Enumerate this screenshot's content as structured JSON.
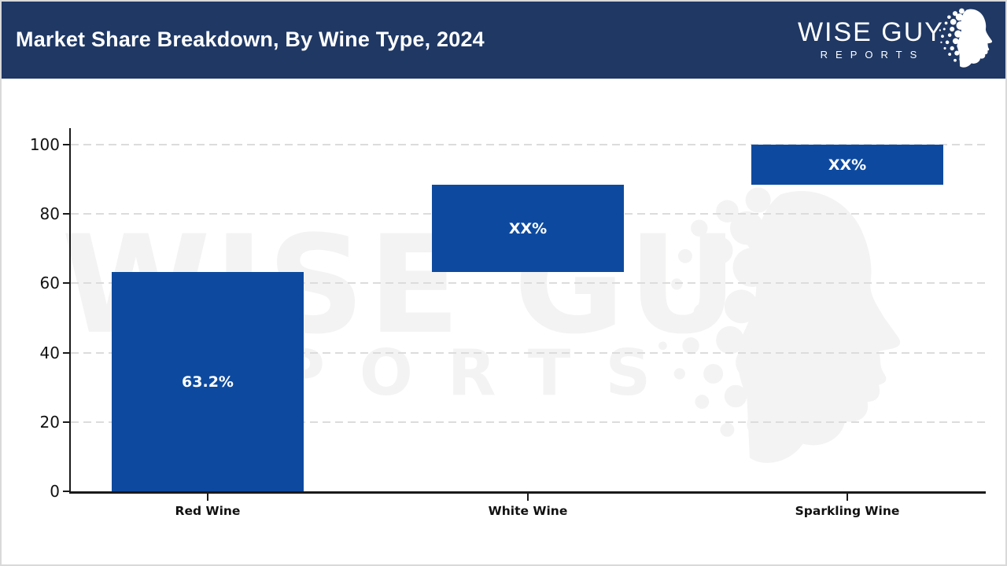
{
  "header": {
    "title": "Market Share Breakdown, By Wine Type, 2024",
    "logo": {
      "wordmark": "WISE GUY",
      "subtitle": "REPORTS"
    }
  },
  "watermark": {
    "line1": "WISE GUY",
    "line2": "REPORTS"
  },
  "colors": {
    "header_bg": "#1f3864",
    "bar_fill": "#0d4a9f",
    "bar_label": "#ffffff",
    "axis": "#1a1a1a",
    "gridline": "#dcdcdc",
    "tick_label": "#111111",
    "watermark": "#f3f3f4",
    "page_bg": "#ffffff",
    "page_border": "#d9d9d9"
  },
  "chart_data": {
    "type": "bar",
    "variant": "floating-waterfall-segments",
    "title": "Market Share Breakdown, By Wine Type, 2024",
    "categories": [
      "Red Wine",
      "White Wine",
      "Sparkling Wine"
    ],
    "segments": [
      {
        "category": "Red Wine",
        "start": 0,
        "end": 63.2,
        "label": "63.2%"
      },
      {
        "category": "White Wine",
        "start": 63.2,
        "end": 88.4,
        "label": "XX%"
      },
      {
        "category": "Sparkling Wine",
        "start": 88.4,
        "end": 100,
        "label": "XX%"
      }
    ],
    "xlabel": "",
    "ylabel": "",
    "ylim": [
      0,
      100
    ],
    "yticks": [
      0,
      20,
      40,
      60,
      80,
      100
    ],
    "grid": "horizontal-dashed",
    "legend": "none"
  }
}
